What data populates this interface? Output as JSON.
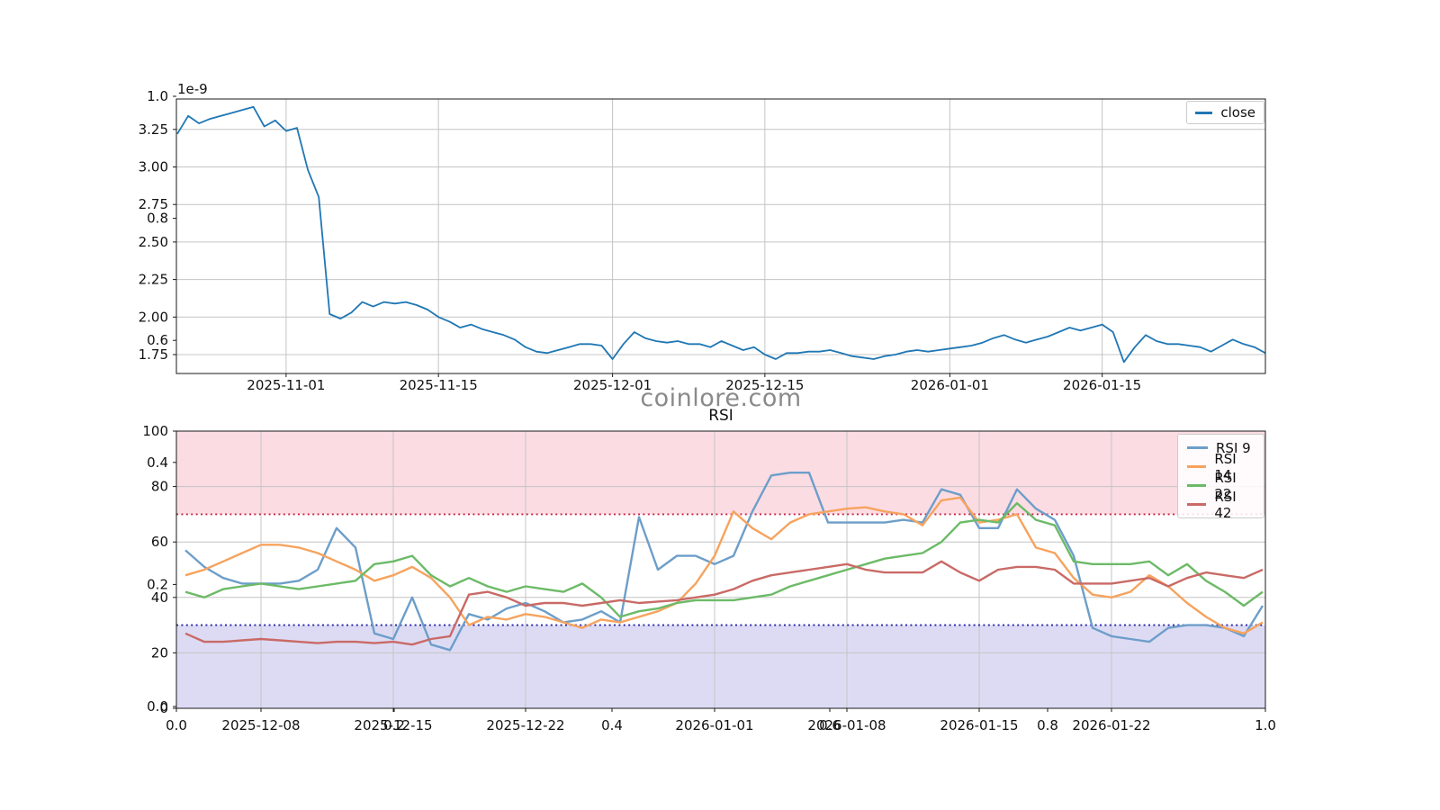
{
  "watermark": "coinlore.com",
  "hidden_axis": {
    "x_tick_labels": [
      "0.0",
      "0.2",
      "0.4",
      "0.6",
      "0.8",
      "1.0"
    ],
    "y_tick_labels": [
      "0.0",
      "0.2",
      "0.4",
      "0.6",
      "0.8",
      "1.0"
    ]
  },
  "chart_data": [
    {
      "type": "line",
      "title": "",
      "legend_position": "upper right",
      "y_offset_label": "1e-9",
      "grid": true,
      "ylim_displayed": [
        1.62,
        3.45
      ],
      "y_tick_labels": [
        "3.25",
        "3.00",
        "2.75",
        "2.50",
        "2.25",
        "2.00",
        "1.75"
      ],
      "x_tick_labels": [
        "2025-11-01",
        "2025-11-15",
        "2025-12-01",
        "2025-12-15",
        "2026-01-01",
        "2026-01-15"
      ],
      "start_date": "2025-10-22",
      "frequency": "daily",
      "series": [
        {
          "name": "close",
          "color": "#1f77b4",
          "values": [
            3.22,
            3.34,
            3.29,
            3.32,
            3.34,
            3.36,
            3.38,
            3.4,
            3.27,
            3.31,
            3.24,
            3.26,
            2.98,
            2.8,
            2.02,
            1.99,
            2.03,
            2.1,
            2.07,
            2.1,
            2.09,
            2.1,
            2.08,
            2.05,
            2.0,
            1.97,
            1.93,
            1.95,
            1.92,
            1.9,
            1.88,
            1.85,
            1.8,
            1.77,
            1.76,
            1.78,
            1.8,
            1.82,
            1.82,
            1.81,
            1.72,
            1.82,
            1.9,
            1.86,
            1.84,
            1.83,
            1.84,
            1.82,
            1.82,
            1.8,
            1.84,
            1.81,
            1.78,
            1.8,
            1.75,
            1.72,
            1.76,
            1.76,
            1.77,
            1.77,
            1.78,
            1.76,
            1.74,
            1.73,
            1.72,
            1.74,
            1.75,
            1.77,
            1.78,
            1.77,
            1.78,
            1.79,
            1.8,
            1.81,
            1.83,
            1.86,
            1.88,
            1.85,
            1.83,
            1.85,
            1.87,
            1.9,
            1.93,
            1.91,
            1.93,
            1.95,
            1.9,
            1.7,
            1.8,
            1.88,
            1.84,
            1.82,
            1.82,
            1.81,
            1.8,
            1.77,
            1.81,
            1.85,
            1.82,
            1.8,
            1.76
          ]
        }
      ]
    },
    {
      "type": "line",
      "title": "RSI",
      "legend_position": "upper right",
      "grid": true,
      "ylim": [
        0,
        100
      ],
      "y_tick_labels": [
        "100",
        "80",
        "60",
        "40",
        "20",
        "0"
      ],
      "x_tick_labels": [
        "2025-12-08",
        "2025-12-15",
        "2025-12-22",
        "2026-01-01",
        "2026-01-08",
        "2026-01-15",
        "2026-01-22"
      ],
      "start_date": "2025-12-04",
      "frequency": "daily",
      "overbought_level": 70,
      "oversold_level": 30,
      "overbought_fill": "#fbdce3",
      "oversold_fill": "#dddbf4",
      "overbought_line_color": "#cc2244",
      "oversold_line_color": "#2222aa",
      "series": [
        {
          "name": "RSI 9",
          "color": "#6d9ec9",
          "values": [
            57,
            51,
            47,
            45,
            45,
            45,
            46,
            50,
            65,
            58,
            27,
            25,
            40,
            23,
            21,
            34,
            32,
            36,
            38,
            35,
            31,
            32,
            35,
            31,
            69,
            50,
            55,
            55,
            52,
            55,
            71,
            84,
            85,
            85,
            67,
            67,
            67,
            67,
            68,
            67,
            79,
            77,
            65,
            65,
            79,
            72,
            68,
            55,
            29,
            26,
            25,
            24,
            29,
            30,
            30,
            29,
            26,
            37
          ]
        },
        {
          "name": "RSI 14",
          "color": "#f6a35e",
          "values": [
            48,
            50,
            53,
            56,
            59,
            59,
            58,
            56,
            53,
            50,
            46,
            48,
            51,
            47,
            40,
            30,
            33,
            32,
            34,
            33,
            31,
            29,
            32,
            31,
            33,
            35,
            38,
            45,
            55,
            71,
            65,
            61,
            67,
            70,
            71,
            72,
            72.5,
            71,
            70,
            66,
            75,
            76,
            67,
            68,
            70,
            58,
            56,
            47,
            41,
            40,
            42,
            48,
            44,
            38,
            33,
            29,
            27,
            31
          ]
        },
        {
          "name": "RSI 22",
          "color": "#6cba67",
          "values": [
            42,
            40,
            43,
            44,
            45,
            44,
            43,
            44,
            45,
            46,
            52,
            53,
            55,
            48,
            44,
            47,
            44,
            42,
            44,
            43,
            42,
            45,
            40,
            33,
            35,
            36,
            38,
            39,
            39,
            39,
            40,
            41,
            44,
            46,
            48,
            50,
            52,
            54,
            55,
            56,
            60,
            67,
            68,
            67,
            74,
            68,
            66,
            53,
            52,
            52,
            52,
            53,
            48,
            52,
            46,
            42,
            37,
            42
          ]
        },
        {
          "name": "RSI 42",
          "color": "#c96a66",
          "values": [
            27,
            24,
            24,
            24.5,
            25,
            24.5,
            24,
            23.5,
            24,
            24,
            23.5,
            24,
            23,
            25,
            26,
            41,
            42,
            40,
            37,
            38,
            38,
            37,
            38,
            39,
            38,
            38.5,
            39,
            40,
            41,
            43,
            46,
            48,
            49,
            50,
            51,
            52,
            50,
            49,
            49,
            49,
            53,
            49,
            46,
            50,
            51,
            51,
            50,
            45,
            45,
            45,
            46,
            47,
            44,
            47,
            49,
            48,
            47,
            50
          ]
        }
      ]
    }
  ]
}
